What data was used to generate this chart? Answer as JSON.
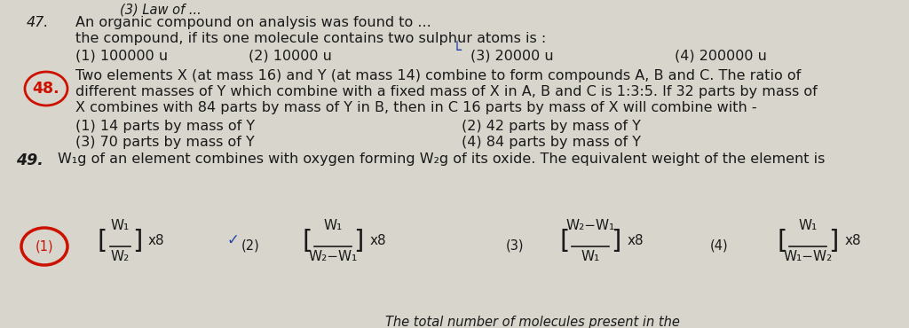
{
  "bg_color": "#d8d5cc",
  "text_color": "#1a1a1a",
  "red_color": "#cc1100",
  "blue_color": "#2244aa",
  "top_partial": "(3) Law of ...",
  "q47_num": "47.",
  "q47_line1": "An organic compound on analysis was found to ...",
  "q47_line2": "the compound, if its one molecule contains two sulphur atoms is :",
  "q47_op1": "(1) 100000 u",
  "q47_op2": "(2) 10000 u",
  "q47_op3": "(3) 20000 u",
  "q47_op4": "(4) 200000 u",
  "q48_num": "48.",
  "q48_line1": "Two elements X (at mass 16) and Y (at mass 14) combine to form compounds A, B and C. The ratio of",
  "q48_line2": "different masses of Y which combine with a fixed mass of X in A, B and C is 1:3:5. If 32 parts by mass of",
  "q48_line3": "X combines with 84 parts by mass of Y in B, then in C 16 parts by mass of X will combine with -",
  "q48_op1": "(1) 14 parts by mass of Y",
  "q48_op2": "(2) 42 parts by mass of Y",
  "q48_op3": "(3) 70 parts by mass of Y",
  "q48_op4": "(4) 84 parts by mass of Y",
  "q49_num": "49.",
  "q49_text": "W₁g of an element combines with oxygen forming W₂g of its oxide. The equivalent weight of the element is",
  "q49_opt1_num": "W₁",
  "q49_opt1_den": "W₂",
  "q49_opt2_num": "W₁",
  "q49_opt2_den": "W₂−W₁",
  "q49_opt3_num": "W₂−W₁",
  "q49_opt3_den": "W₁",
  "q49_opt4_num": "W₁",
  "q49_opt4_den": "W₁−W₂",
  "bottom_text": "The total number of molecules present in the"
}
